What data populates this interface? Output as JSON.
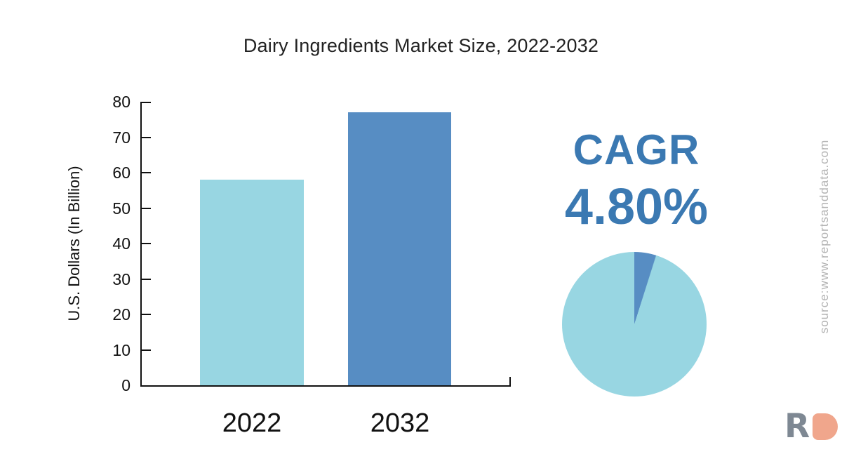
{
  "title": "Dairy Ingredients Market Size, 2022-2032",
  "source_note": "source:www.reportsanddata.com",
  "cagr": {
    "label": "CAGR",
    "value": "4.80%"
  },
  "logo": {
    "letter_r": "R"
  },
  "colors": {
    "bar_2022": "#98d6e2",
    "bar_2032": "#578dc3",
    "cagr_text": "#3b79b2",
    "pie_wedge": "#578dc3",
    "pie_main": "#98d6e2",
    "axis": "#111111",
    "source_text": "#b3b3b3",
    "logo_r": "#7e8893",
    "logo_d": "#f0a68c"
  },
  "chart_data": [
    {
      "type": "bar",
      "title": "Dairy Ingredients Market Size, 2022-2032",
      "categories": [
        "2022",
        "2032"
      ],
      "values": [
        58,
        77
      ],
      "xlabel": "",
      "ylabel": "U.S. Dollars (In Billion)",
      "ylim": [
        0,
        80
      ],
      "yticks": [
        0,
        10,
        20,
        30,
        40,
        50,
        60,
        70,
        80
      ],
      "bar_colors": [
        "#98d6e2",
        "#578dc3"
      ],
      "grid": false,
      "legend": false
    },
    {
      "type": "pie",
      "labels": [
        "CAGR",
        "remainder"
      ],
      "values": [
        4.8,
        95.2
      ],
      "colors": [
        "#578dc3",
        "#98d6e2"
      ],
      "start_angle": "12 o'clock, clockwise",
      "annotation": "CAGR 4.80%"
    }
  ]
}
